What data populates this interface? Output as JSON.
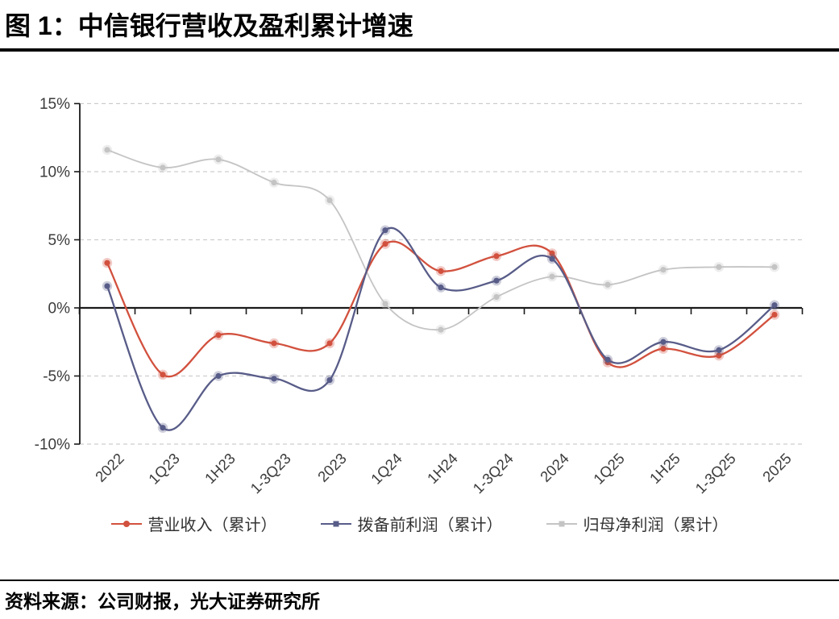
{
  "page": {
    "title": "图 1：中信银行营收及盈利累计增速",
    "source": "资料来源：公司财报，光大证券研究所"
  },
  "chart_data": {
    "type": "line",
    "title": "中信银行营收及盈利累计增速",
    "categories": [
      "2022",
      "1Q23",
      "1H23",
      "1-3Q23",
      "2023",
      "1Q24",
      "1H24",
      "1-3Q24",
      "2024",
      "1Q25",
      "1H25",
      "1-3Q25",
      "2025"
    ],
    "series": [
      {
        "name": "营业收入（累计）",
        "color": "#d2513e",
        "marker": "circle",
        "values": [
          3.3,
          -4.9,
          -2.0,
          -2.6,
          -2.6,
          4.7,
          2.7,
          3.8,
          4.0,
          -4.0,
          -3.0,
          -3.5,
          -0.5
        ]
      },
      {
        "name": "拨备前利润（累计）",
        "color": "#585c88",
        "marker": "square",
        "values": [
          1.6,
          -8.8,
          -5.0,
          -5.2,
          -5.3,
          5.7,
          1.5,
          2.0,
          3.6,
          -3.8,
          -2.5,
          -3.1,
          0.2
        ]
      },
      {
        "name": "归母净利润（累计）",
        "color": "#c4c4c4",
        "marker": "square",
        "values": [
          11.6,
          10.3,
          10.9,
          9.2,
          7.9,
          0.3,
          -1.6,
          0.8,
          2.3,
          1.7,
          2.8,
          3.0,
          3.0
        ]
      }
    ],
    "ylabel": "",
    "xlabel": "",
    "y_ticks": [
      15,
      10,
      5,
      0,
      -5,
      -10
    ],
    "y_tick_suffix": "%",
    "ylim": [
      -10,
      15
    ],
    "grid": "dashed-horizontal",
    "zero_line": "solid-black",
    "legend_position": "bottom",
    "line_style": "smooth",
    "colors": {
      "grid": "#cdcdcd",
      "axis": "#1a1a1a",
      "tick_label": "#3c3c3c"
    }
  }
}
